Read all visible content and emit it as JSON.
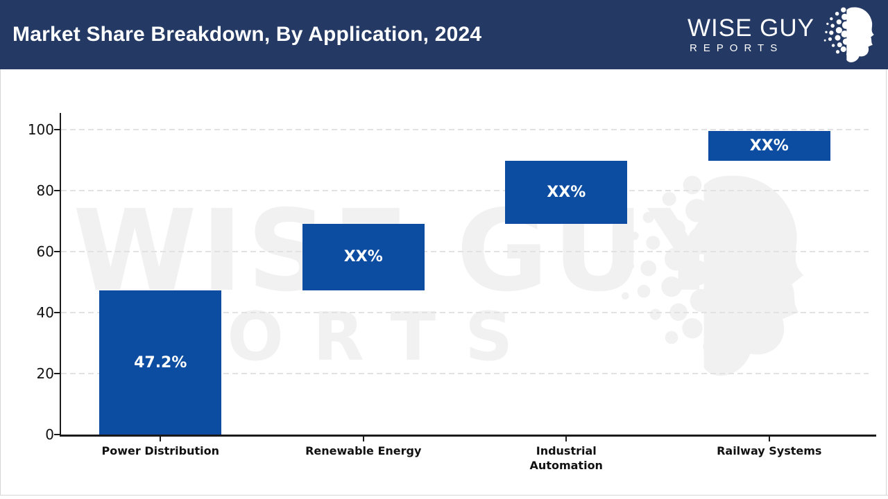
{
  "header": {
    "title": "Market Share Breakdown, By Application, 2024",
    "logo": {
      "line1": "WISE GUY",
      "line2": "REPORTS"
    }
  },
  "watermark": {
    "line1": "WISE GUY",
    "line2": "PORTS"
  },
  "colors": {
    "header_bg": "#243a64",
    "bar": "#0d4da1",
    "bar_label": "#ffffff",
    "axis": "#1a1a1a",
    "tick_label": "#111111",
    "gridline": "#e2e2e2",
    "watermark": "#f1f1f2",
    "card_border": "#d6d6d6"
  },
  "chart_data": {
    "type": "bar",
    "subtype": "waterfall",
    "title": "Market Share Breakdown, By Application, 2024",
    "categories": [
      "Power Distribution",
      "Renewable Energy",
      "Industrial Automation",
      "Railway Systems"
    ],
    "segments": [
      {
        "start": 0,
        "end": 47.2,
        "label": "47.2%"
      },
      {
        "start": 47.2,
        "end": 69.2,
        "label": "XX%"
      },
      {
        "start": 69.2,
        "end": 89.7,
        "label": "XX%"
      },
      {
        "start": 89.7,
        "end": 99.5,
        "label": "XX%"
      }
    ],
    "yticks": [
      0,
      20,
      40,
      60,
      80,
      100
    ],
    "ylim": [
      0,
      105
    ],
    "xlabel": "",
    "ylabel": "",
    "grid": "horizontal-dashed",
    "legend": "none"
  }
}
